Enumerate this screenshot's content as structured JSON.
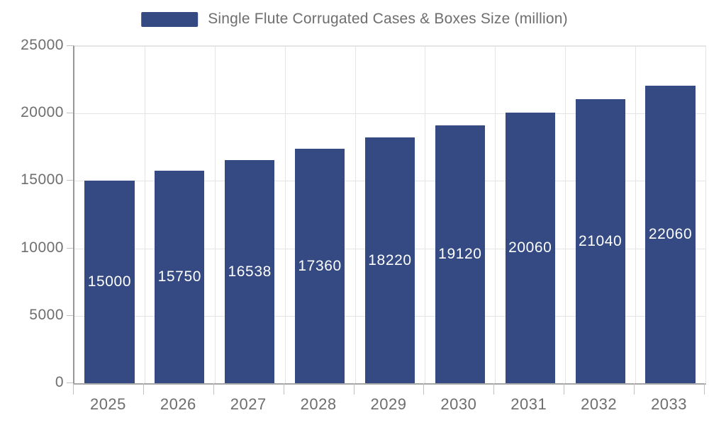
{
  "legend": {
    "label": "Single Flute Corrugated Cases & Boxes Size (million)"
  },
  "chart_data": {
    "type": "bar",
    "title": "Single Flute Corrugated Cases & Boxes Size (million)",
    "categories": [
      "2025",
      "2026",
      "2027",
      "2028",
      "2029",
      "2030",
      "2031",
      "2032",
      "2033"
    ],
    "series": [
      {
        "name": "Single Flute Corrugated Cases & Boxes Size (million)",
        "values": [
          15000,
          15750,
          16538,
          17360,
          18220,
          19120,
          20060,
          21040,
          22060
        ]
      }
    ],
    "value_labels": [
      "15000",
      "15750",
      "16538",
      "17360",
      "18220",
      "19120",
      "20060",
      "21040",
      "22060"
    ],
    "xlabel": "",
    "ylabel": "",
    "ylim": [
      0,
      25000
    ],
    "y_ticks": [
      0,
      5000,
      10000,
      15000,
      20000,
      25000
    ],
    "grid": true,
    "legend_position": "top",
    "colors": {
      "bar": "#354a83",
      "value_label": "#ffffff",
      "axis_text": "#6e6e6e",
      "gridline": "#e4e4e4",
      "axis_line": "#a6a6a6",
      "tick": "#c0c0c0",
      "background": "#ffffff"
    }
  }
}
